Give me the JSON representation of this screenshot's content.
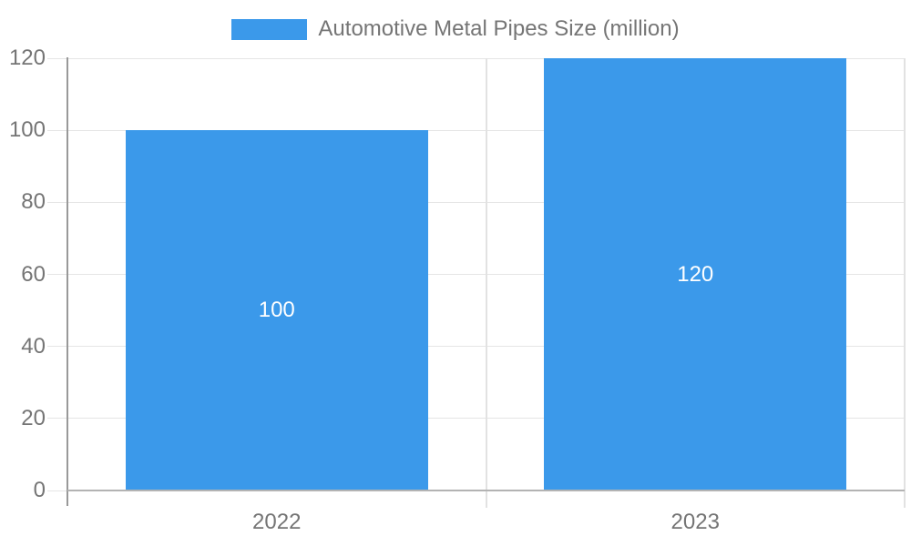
{
  "legend": {
    "label": "Automotive Metal Pipes Size (million)"
  },
  "colors": {
    "bar": "#3B99EA",
    "legend_text": "#757575",
    "axis_text": "#757575",
    "data_label_text": "#ffffff",
    "gridline": "#e5e5e5",
    "boundary_line": "#e2e2e2",
    "axis_line_x": "#b3b3b3",
    "axis_line_y": "#999999",
    "background": "#ffffff"
  },
  "chart_data": {
    "type": "bar",
    "title": "Automotive Metal Pipes Size (million)",
    "categories": [
      "2022",
      "2023"
    ],
    "series": [
      {
        "name": "Automotive Metal Pipes Size (million)",
        "values": [
          100,
          120
        ]
      }
    ],
    "data_labels": [
      "100",
      "120"
    ],
    "xlabel": "",
    "ylabel": "",
    "ylim": [
      0,
      120
    ],
    "yticks": [
      0,
      20,
      40,
      60,
      80,
      100,
      120
    ],
    "grid": true,
    "legend_position": "top-center"
  }
}
